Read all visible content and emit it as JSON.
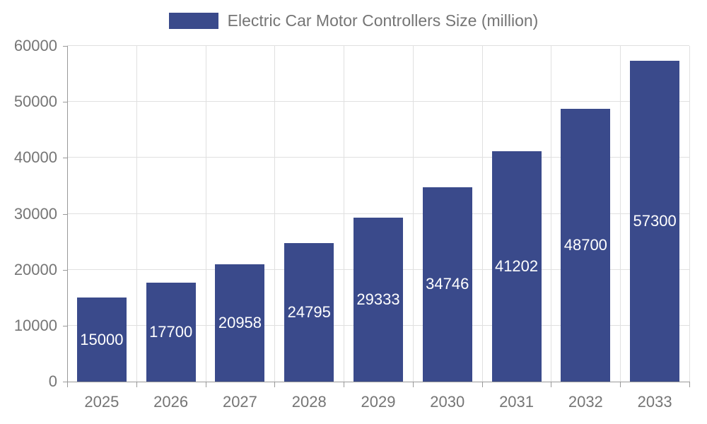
{
  "chart_data": {
    "type": "bar",
    "title": "Electric Car Motor Controllers Size (million)",
    "categories": [
      "2025",
      "2026",
      "2027",
      "2028",
      "2029",
      "2030",
      "2031",
      "2032",
      "2033"
    ],
    "values": [
      15000,
      17700,
      20958,
      24795,
      29333,
      34746,
      41202,
      48700,
      57300
    ],
    "xlabel": "",
    "ylabel": "",
    "ylim": [
      0,
      60000
    ],
    "ytick_step": 10000,
    "yticks": [
      0,
      10000,
      20000,
      30000,
      40000,
      50000,
      60000
    ],
    "grid": true,
    "legend_position": "top",
    "value_labels": "inside-center",
    "colors": {
      "bar": "#3a4a8b",
      "value_label": "#ffffff",
      "axis_text": "#757575",
      "grid": "#e0e0e0",
      "axis_line": "#999999",
      "background": "#ffffff"
    }
  }
}
